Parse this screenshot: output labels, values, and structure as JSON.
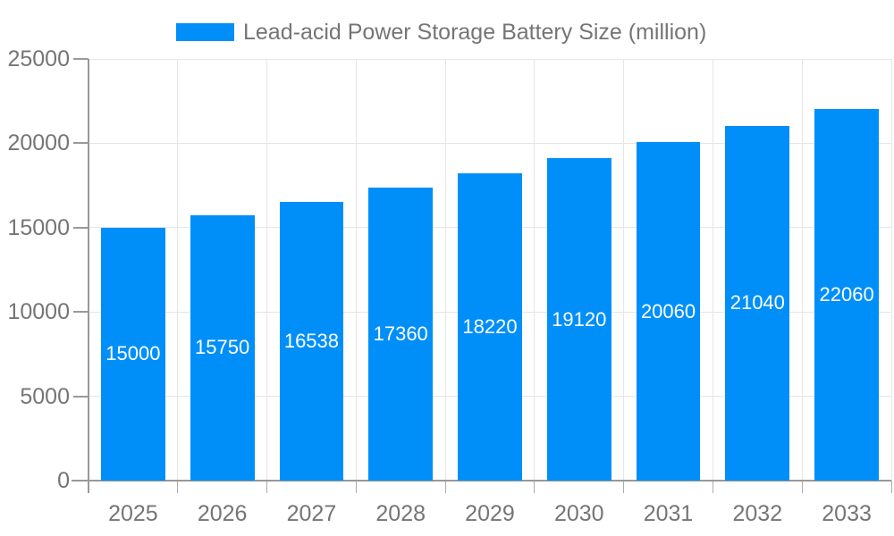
{
  "colors": {
    "bar": "#008FF8",
    "axis": "#999999",
    "tick": "#ADADAD",
    "grid": "#E6E6E6",
    "label_text": "#757575",
    "bar_label": "#FFFFFF",
    "background": "#FFFFFF"
  },
  "chart_data": {
    "type": "bar",
    "title": "",
    "legend": [
      "Lead-acid Power Storage Battery Size (million)"
    ],
    "legend_position": "top",
    "categories": [
      "2025",
      "2026",
      "2027",
      "2028",
      "2029",
      "2030",
      "2031",
      "2032",
      "2033"
    ],
    "series": [
      {
        "name": "Lead-acid Power Storage Battery Size (million)",
        "values": [
          15000,
          15750,
          16538,
          17360,
          18220,
          19120,
          20060,
          21040,
          22060
        ]
      }
    ],
    "xlabel": "",
    "ylabel": "",
    "ylim": [
      0,
      25000
    ],
    "yticks": [
      0,
      5000,
      10000,
      15000,
      20000,
      25000
    ],
    "grid": true,
    "bar_labels": "inside-center"
  }
}
